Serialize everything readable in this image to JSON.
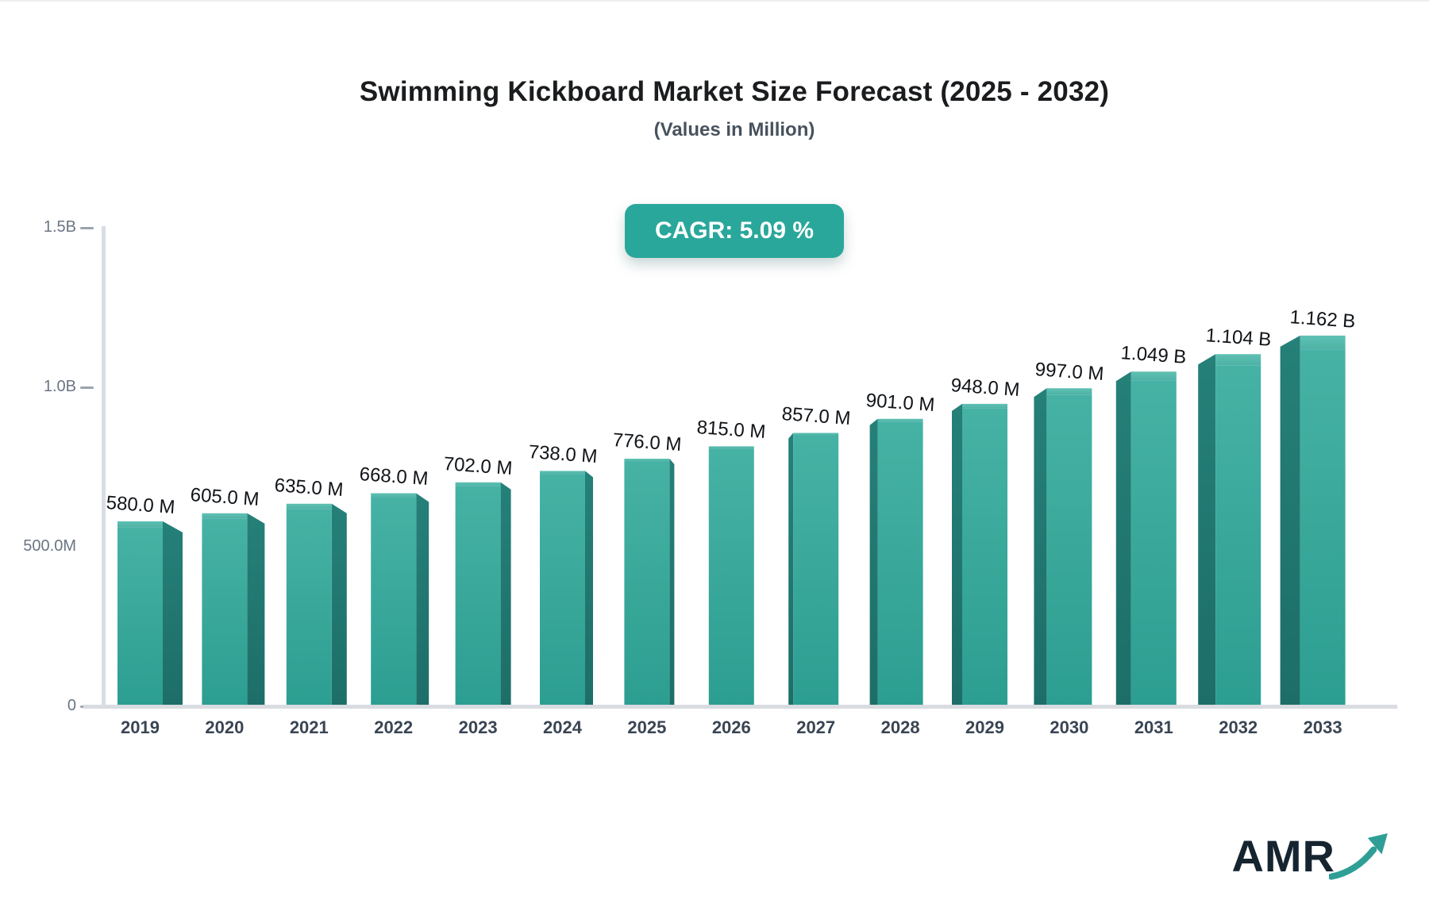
{
  "header": {
    "title": "Swimming Kickboard Market Size Forecast (2025 - 2032)",
    "subtitle": "(Values in Million)"
  },
  "badge": {
    "label": "CAGR: 5.09 %"
  },
  "chart_data": {
    "type": "bar",
    "title": "Swimming Kickboard Market Size Forecast (2025 - 2032)",
    "subtitle": "(Values in Million)",
    "cagr": "5.09 %",
    "unit": "Million USD",
    "categories": [
      "2019",
      "2020",
      "2021",
      "2022",
      "2023",
      "2024",
      "2025",
      "2026",
      "2027",
      "2028",
      "2029",
      "2030",
      "2031",
      "2032",
      "2033"
    ],
    "values_millions": [
      580,
      605,
      635,
      668,
      702,
      738,
      776,
      815,
      857,
      901,
      948,
      997,
      1049,
      1104,
      1162
    ],
    "value_labels": [
      "580.0 M",
      "605.0 M",
      "635.0 M",
      "668.0 M",
      "702.0 M",
      "738.0 M",
      "776.0 M",
      "815.0 M",
      "857.0 M",
      "901.0 M",
      "948.0 M",
      "997.0 M",
      "1.049 B",
      "1.104 B",
      "1.162 B"
    ],
    "y_ticks": [
      {
        "label": "1.5B",
        "value": 1500,
        "dash": true
      },
      {
        "label": "1.0B",
        "value": 1000,
        "dash": true
      },
      {
        "label": "500.0M",
        "value": 500,
        "dash": false
      },
      {
        "label": "0",
        "value": 0,
        "dash": true
      }
    ],
    "ylim": [
      0,
      1500
    ],
    "grid": false,
    "legend": "none",
    "colors": {
      "bar_front_top": "#44b1a4",
      "bar_front_bottom": "#2d9f92",
      "bar_top_face": "#5abdb0",
      "bar_side_face": "#20766f",
      "axis_line": "#dadde2",
      "baseline": "#d9dce1",
      "tick_text": "#6a7584",
      "year_text": "#3a4553",
      "value_text": "#111418",
      "badge_bg": "#2aa79b"
    }
  },
  "logo": {
    "text": "AMR"
  }
}
